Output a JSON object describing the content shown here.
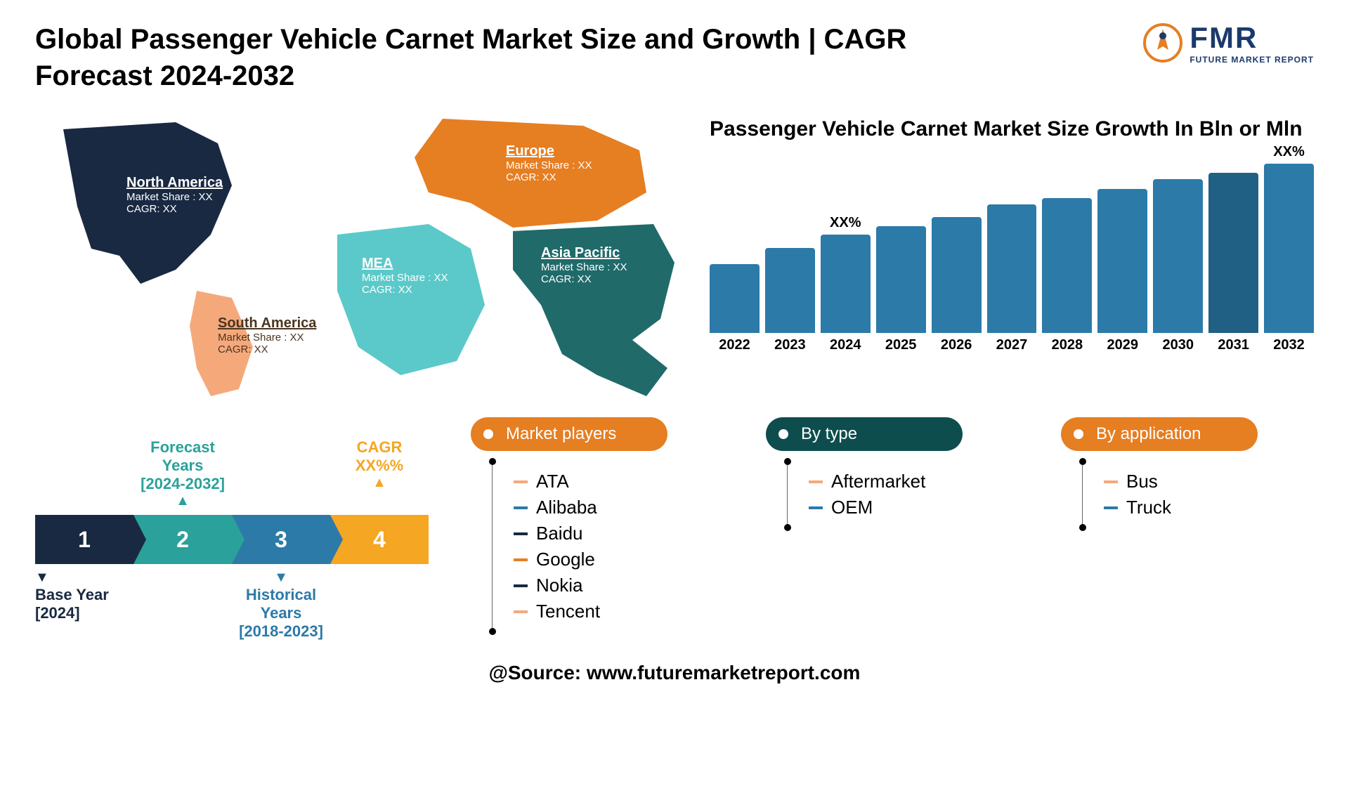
{
  "title": "Global Passenger Vehicle Carnet Market Size and Growth | CAGR Forecast 2024-2032",
  "logo": {
    "main": "FMR",
    "sub": "FUTURE MARKET REPORT"
  },
  "map": {
    "regions": [
      {
        "name": "North America",
        "share": "Market Share : XX",
        "cagr": "CAGR: XX",
        "color": "#1a2942"
      },
      {
        "name": "South America",
        "share": "Market Share : XX",
        "cagr": "CAGR: XX",
        "color": "#f5a97b"
      },
      {
        "name": "Europe",
        "share": "Market Share : XX",
        "cagr": "CAGR: XX",
        "color": "#e67e22"
      },
      {
        "name": "MEA",
        "share": "Market Share : XX",
        "cagr": "CAGR: XX",
        "color": "#5bc9c9"
      },
      {
        "name": "Asia Pacific",
        "share": "Market Share : XX",
        "cagr": "CAGR: XX",
        "color": "#206a6a"
      }
    ]
  },
  "chart": {
    "title": "Passenger Vehicle Carnet Market Size Growth In Bln or Mln",
    "type": "bar",
    "categories": [
      "2022",
      "2023",
      "2024",
      "2025",
      "2026",
      "2027",
      "2028",
      "2029",
      "2030",
      "2031",
      "2032"
    ],
    "values": [
      110,
      135,
      157,
      170,
      185,
      205,
      215,
      230,
      245,
      255,
      270
    ],
    "bar_colors": [
      "#2c7aa8",
      "#2c7aa8",
      "#2c7aa8",
      "#2c7aa8",
      "#2c7aa8",
      "#2c7aa8",
      "#2c7aa8",
      "#2c7aa8",
      "#2c7aa8",
      "#206085",
      "#2c7aa8"
    ],
    "ylim": [
      0,
      280
    ],
    "annotations": [
      {
        "index": 2,
        "label": "XX%"
      },
      {
        "index": 10,
        "label": "XX%"
      }
    ],
    "background_color": "#ffffff",
    "label_fontsize": 20
  },
  "timeline": {
    "segments": [
      {
        "label": "1",
        "color": "#1a2942"
      },
      {
        "label": "2",
        "color": "#2aa19a"
      },
      {
        "label": "3",
        "color": "#2c7aa8"
      },
      {
        "label": "4",
        "color": "#f5a623"
      }
    ],
    "annotations": {
      "base_year": {
        "label": "Base Year",
        "value": "[2024]",
        "color": "#1a2942"
      },
      "forecast": {
        "label": "Forecast Years",
        "value": "[2024-2032]",
        "color": "#2aa19a"
      },
      "historical": {
        "label": "Historical Years",
        "value": "[2018-2023]",
        "color": "#2c7aa8"
      },
      "cagr": {
        "label": "CAGR",
        "value": "XX%%",
        "color": "#f5a623"
      }
    }
  },
  "columns": {
    "market_players": {
      "header": "Market players",
      "header_color": "#e67e22",
      "items": [
        {
          "label": "ATA",
          "tick_color": "#f5a97b"
        },
        {
          "label": "Alibaba",
          "tick_color": "#2c7aa8"
        },
        {
          "label": "Baidu",
          "tick_color": "#1a2942"
        },
        {
          "label": "Google",
          "tick_color": "#e67e22"
        },
        {
          "label": "Nokia",
          "tick_color": "#1a2942"
        },
        {
          "label": "Tencent",
          "tick_color": "#f5a97b"
        }
      ]
    },
    "by_type": {
      "header": "By type",
      "header_color": "#0e4d4d",
      "items": [
        {
          "label": "Aftermarket",
          "tick_color": "#f5a97b"
        },
        {
          "label": "OEM",
          "tick_color": "#2c7aa8"
        }
      ]
    },
    "by_application": {
      "header": "By application",
      "header_color": "#e67e22",
      "items": [
        {
          "label": "Bus",
          "tick_color": "#f5a97b"
        },
        {
          "label": "Truck",
          "tick_color": "#2c7aa8"
        }
      ]
    }
  },
  "source": "@Source: www.futuremarketreport.com"
}
